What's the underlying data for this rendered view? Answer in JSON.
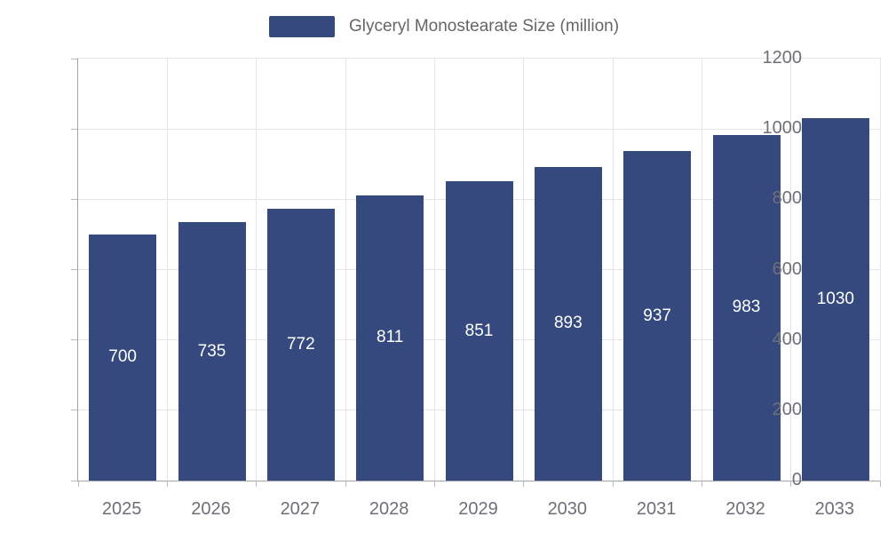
{
  "legend": {
    "label": "Glyceryl Monostearate Size (million)"
  },
  "chart_data": {
    "type": "bar",
    "title": "",
    "categories": [
      "2025",
      "2026",
      "2027",
      "2028",
      "2029",
      "2030",
      "2031",
      "2032",
      "2033"
    ],
    "series": [
      {
        "name": "Glyceryl Monostearate Size (million)",
        "values": [
          700,
          735,
          772,
          811,
          851,
          893,
          937,
          983,
          1030
        ]
      }
    ],
    "xlabel": "",
    "ylabel": "",
    "ylim": [
      0,
      1200
    ],
    "y_ticks": [
      0,
      200,
      400,
      600,
      800,
      1000,
      1200
    ],
    "grid": true,
    "legend_position": "top-center",
    "value_label_position": "inside-middle",
    "colors": {
      "bar": "#36497e",
      "value_label": "#ffffff",
      "axis_label": "#6e7079",
      "legend_text": "#666666",
      "grid_line": "#e4e4e9",
      "axis_line": "#a3a3a3",
      "background": "#ffffff"
    }
  }
}
